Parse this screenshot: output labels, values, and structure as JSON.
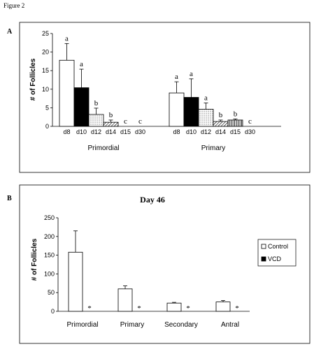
{
  "figure_label": "Figure 2",
  "chart_data": [
    {
      "panel": "A",
      "type": "bar",
      "ylabel": "# of Follicles",
      "ylim": [
        0,
        25
      ],
      "yticks": [
        0,
        5,
        10,
        15,
        20,
        25
      ],
      "grid": false,
      "groups": [
        {
          "name": "Primordial",
          "categories": [
            "d8",
            "d10",
            "d12",
            "d14",
            "d15",
            "d30"
          ],
          "values": [
            17.8,
            10.4,
            3.2,
            1.1,
            0,
            0
          ],
          "errors": [
            4.5,
            5.0,
            1.7,
            0.6,
            0,
            0
          ],
          "letters": [
            "a",
            "a",
            "b",
            "b",
            "c",
            "c"
          ],
          "fills": [
            "white",
            "black",
            "dots",
            "hatch",
            "white",
            "white"
          ]
        },
        {
          "name": "Primary",
          "categories": [
            "d8",
            "d10",
            "d12",
            "d14",
            "d15",
            "d30"
          ],
          "values": [
            9.0,
            7.8,
            4.6,
            1.3,
            1.7,
            0
          ],
          "errors": [
            3.0,
            5.0,
            1.7,
            0.4,
            0.3,
            0
          ],
          "letters": [
            "a",
            "a",
            "a",
            "b",
            "b",
            "c"
          ],
          "fills": [
            "white",
            "black",
            "dots",
            "hatch",
            "vlines",
            "white"
          ]
        }
      ]
    },
    {
      "panel": "B",
      "type": "bar",
      "title": "Day 46",
      "ylabel": "# of Follicles",
      "ylim": [
        0,
        250
      ],
      "yticks": [
        0,
        50,
        100,
        150,
        200,
        250
      ],
      "grid": false,
      "legend_position": "right",
      "categories": [
        "Primordial",
        "Primary",
        "Secondary",
        "Antral"
      ],
      "series": [
        {
          "name": "Control",
          "values": [
            158,
            60,
            22,
            25
          ],
          "errors": [
            57,
            8,
            2,
            4
          ],
          "fill": "white"
        },
        {
          "name": "VCD",
          "values": [
            0,
            0,
            0,
            0
          ],
          "errors": [
            0,
            0,
            0,
            0
          ],
          "fill": "black"
        }
      ],
      "significance_marker": "*"
    }
  ]
}
